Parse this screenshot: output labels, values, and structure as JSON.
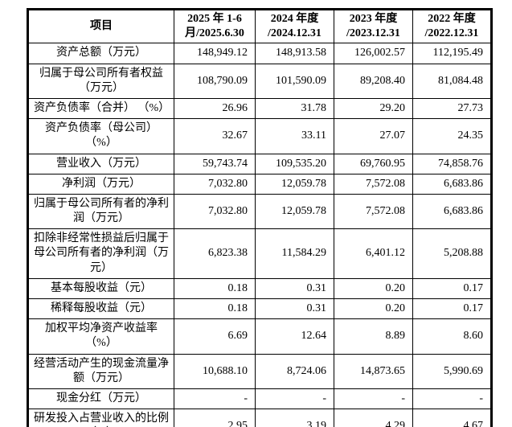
{
  "table": {
    "header": {
      "item_label": "项目",
      "periods": [
        {
          "lines": [
            "2025 年 1-6",
            "月/2025.6.30"
          ]
        },
        {
          "lines": [
            "2024 年度",
            "/2024.12.31"
          ]
        },
        {
          "lines": [
            "2023 年度",
            "/2023.12.31"
          ]
        },
        {
          "lines": [
            "2022 年度",
            "/2022.12.31"
          ]
        }
      ]
    },
    "rows": [
      {
        "label": "资产总额（万元）",
        "values": [
          "148,949.12",
          "148,913.58",
          "126,002.57",
          "112,195.49"
        ]
      },
      {
        "label": "归属于母公司所有者权益（万元）",
        "values": [
          "108,790.09",
          "101,590.09",
          "89,208.40",
          "81,084.48"
        ]
      },
      {
        "label": "资产负债率（合并） （%）",
        "values": [
          "26.96",
          "31.78",
          "29.20",
          "27.73"
        ]
      },
      {
        "label": "资产负债率（母公司） （%）",
        "values": [
          "32.67",
          "33.11",
          "27.07",
          "24.35"
        ]
      },
      {
        "label": "营业收入（万元）",
        "values": [
          "59,743.74",
          "109,535.20",
          "69,760.95",
          "74,858.76"
        ]
      },
      {
        "label": "净利润（万元）",
        "values": [
          "7,032.80",
          "12,059.78",
          "7,572.08",
          "6,683.86"
        ]
      },
      {
        "label": "归属于母公司所有者的净利润（万元）",
        "values": [
          "7,032.80",
          "12,059.78",
          "7,572.08",
          "6,683.86"
        ]
      },
      {
        "label": "扣除非经常性损益后归属于母公司所有者的净利润（万元）",
        "values": [
          "6,823.38",
          "11,584.29",
          "6,401.12",
          "5,208.88"
        ]
      },
      {
        "label": "基本每股收益（元）",
        "values": [
          "0.18",
          "0.31",
          "0.20",
          "0.17"
        ]
      },
      {
        "label": "稀释每股收益（元）",
        "values": [
          "0.18",
          "0.31",
          "0.20",
          "0.17"
        ]
      },
      {
        "label": "加权平均净资产收益率（%）",
        "values": [
          "6.69",
          "12.64",
          "8.89",
          "8.60"
        ]
      },
      {
        "label": "经营活动产生的现金流量净额（万元）",
        "values": [
          "10,688.10",
          "8,724.06",
          "14,873.65",
          "5,990.69"
        ]
      },
      {
        "label": "现金分红（万元）",
        "values": [
          "-",
          "-",
          "-",
          "-"
        ]
      },
      {
        "label": "研发投入占营业收入的比例（%）",
        "values": [
          "2.95",
          "3.19",
          "4.29",
          "4.67"
        ]
      }
    ]
  }
}
